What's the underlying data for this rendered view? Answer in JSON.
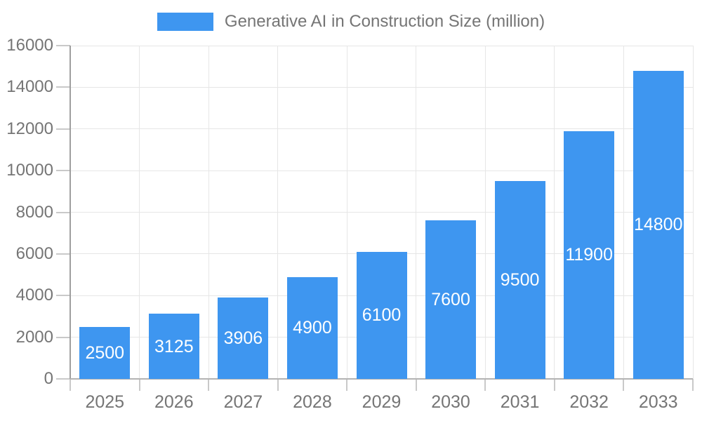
{
  "chart_data": {
    "type": "bar",
    "title": "Generative AI in Construction Size (million)",
    "legend": {
      "position": "top",
      "entries": [
        "Generative AI in Construction Size (million)"
      ]
    },
    "categories": [
      "2025",
      "2026",
      "2027",
      "2028",
      "2029",
      "2030",
      "2031",
      "2032",
      "2033"
    ],
    "series": [
      {
        "name": "Generative AI in Construction Size (million)",
        "values": [
          2500,
          3125,
          3906,
          4900,
          6100,
          7600,
          9500,
          11900,
          14800
        ],
        "color": "#3E96F0"
      }
    ],
    "value_labels": {
      "visible": true,
      "position": "inside-center",
      "color": "#FFFFFF",
      "values": [
        "2500",
        "3125",
        "3906",
        "4900",
        "6100",
        "7600",
        "9500",
        "11900",
        "14800"
      ]
    },
    "xlabel": "",
    "ylabel": "",
    "ylim": [
      0,
      16000
    ],
    "yticks": [
      0,
      2000,
      4000,
      6000,
      8000,
      10000,
      12000,
      14000,
      16000
    ],
    "grid": true,
    "axis_text_color": "#757575",
    "background_color": "#FFFFFF"
  }
}
